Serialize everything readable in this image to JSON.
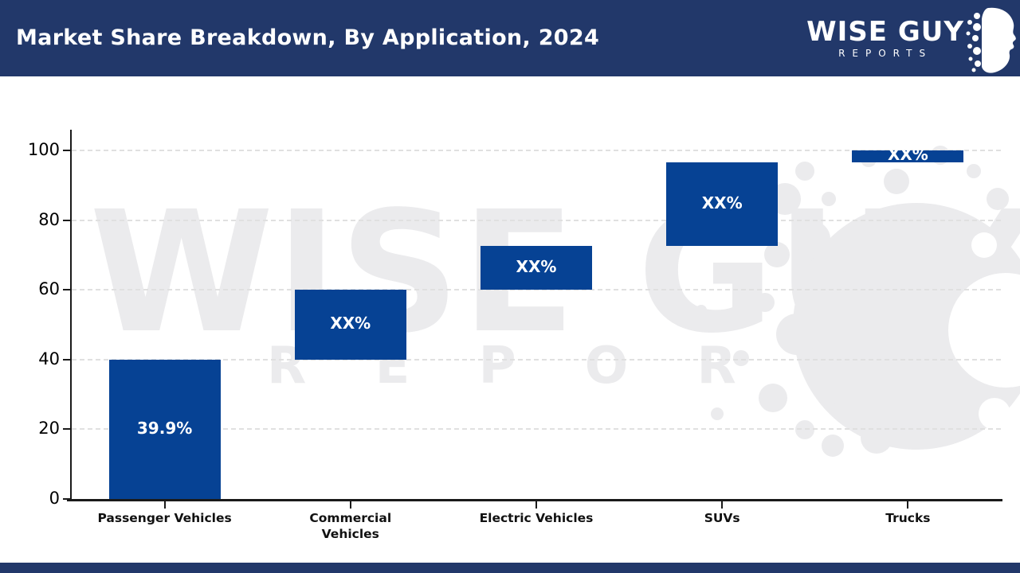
{
  "header": {
    "title": "Market Share Breakdown, By Application, 2024",
    "background_color": "#22386A",
    "logo": {
      "line1": "WISE GUY",
      "line2": "REPORTS",
      "face_icon": "dotted-head-profile"
    }
  },
  "watermark": {
    "line1": "WISE GUY",
    "line2": "R E P O R T S",
    "color": "#ebebed"
  },
  "footer": {
    "background_color": "#22386A"
  },
  "chart_data": {
    "type": "bar",
    "variant": "waterfall",
    "title": "Market Share Breakdown, By Application, 2024",
    "categories": [
      "Passenger Vehicles",
      "Commercial Vehicles",
      "Electric Vehicles",
      "SUVs",
      "Trucks"
    ],
    "category_lines": [
      [
        "Passenger Vehicles"
      ],
      [
        "Commercial",
        "Vehicles"
      ],
      [
        "Electric Vehicles"
      ],
      [
        "SUVs"
      ],
      [
        "Trucks"
      ]
    ],
    "values": [
      39.9,
      20.1,
      12.5,
      24.1,
      3.4
    ],
    "segments": [
      {
        "start": 0,
        "end": 39.9
      },
      {
        "start": 39.9,
        "end": 60.0
      },
      {
        "start": 60.0,
        "end": 72.5
      },
      {
        "start": 72.5,
        "end": 96.6
      },
      {
        "start": 96.6,
        "end": 100.0
      }
    ],
    "bar_labels": [
      "39.9%",
      "XX%",
      "XX%",
      "XX%",
      "XX%"
    ],
    "xlabel": "",
    "ylabel": "",
    "y_ticks": [
      0,
      20,
      40,
      60,
      80,
      100
    ],
    "ylim": [
      0,
      105
    ],
    "grid": "horizontal-dashed",
    "legend": "none",
    "bar_color": "#064294",
    "bar_label_color": "#ffffff",
    "gridline_color": "#e0e0e0",
    "axis_color": "#1a1a1a"
  }
}
